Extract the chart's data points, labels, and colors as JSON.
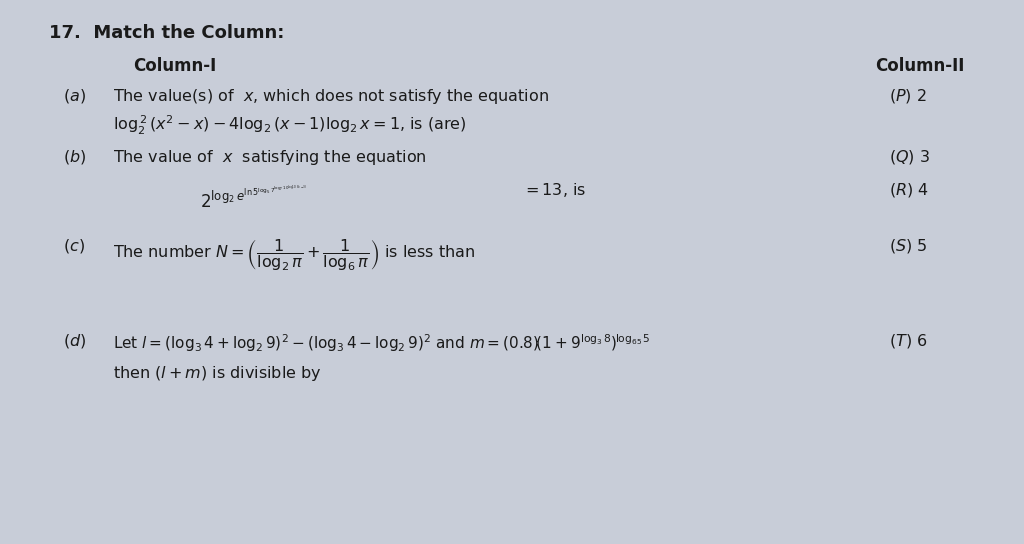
{
  "background_color": "#c8cdd8",
  "text_color": "#1a1a1a",
  "title": "17.  Match the Column:",
  "col1_header": "Column-I",
  "col2_header": "Column-II",
  "figsize": [
    10.24,
    5.44
  ],
  "dpi": 100
}
